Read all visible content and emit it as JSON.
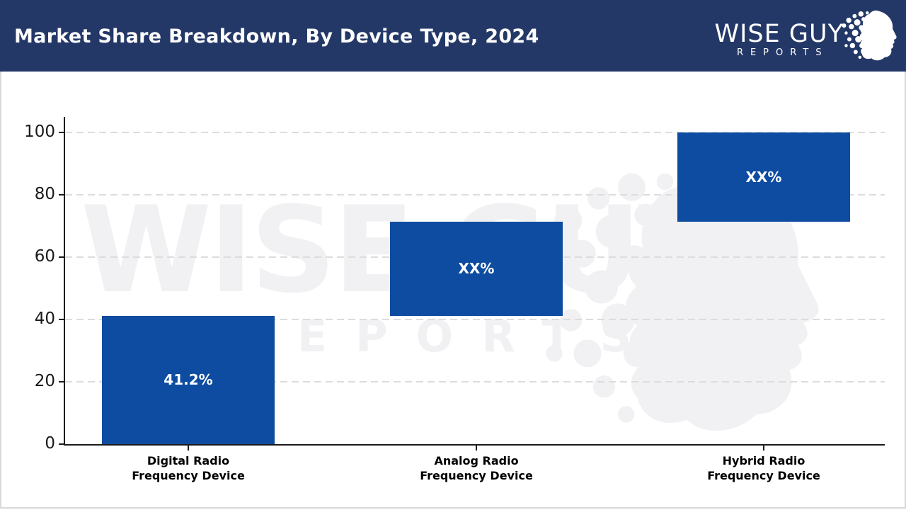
{
  "header": {
    "title": "Market Share Breakdown, By Device Type, 2024",
    "logo": {
      "line1": "WISE GUY",
      "line2": "REPORTS"
    }
  },
  "watermark": {
    "line1": "WISE GUY",
    "line2": "REPORTS"
  },
  "colors": {
    "header_bg": "#233867",
    "bar": "#0d4ca0",
    "grid": "#dcdcdc",
    "axis": "#1a1a1a",
    "title_text": "#fdfdfe",
    "bar_label_text": "#ffffff",
    "watermark": "#f1f1f3"
  },
  "chart_data": {
    "type": "bar",
    "subtype": "waterfall",
    "title": "Market Share Breakdown, By Device Type, 2024",
    "categories": [
      "Digital Radio Frequency Device",
      "Analog Radio Frequency Device",
      "Hybrid Radio Frequency Device"
    ],
    "category_lines": [
      [
        "Digital Radio",
        "Frequency Device"
      ],
      [
        "Analog Radio",
        "Frequency Device"
      ],
      [
        "Hybrid Radio",
        "Frequency Device"
      ]
    ],
    "bars": [
      {
        "start": 0,
        "end": 41.2,
        "label": "41.2%"
      },
      {
        "start": 41.2,
        "end": 71.3,
        "label": "XX%"
      },
      {
        "start": 71.3,
        "end": 100,
        "label": "XX%"
      }
    ],
    "ylim": [
      0,
      100
    ],
    "yticks": [
      0,
      20,
      40,
      60,
      80,
      100
    ],
    "xlabel": "",
    "ylabel": "",
    "grid": "horizontal-dashed",
    "legend": "none"
  }
}
